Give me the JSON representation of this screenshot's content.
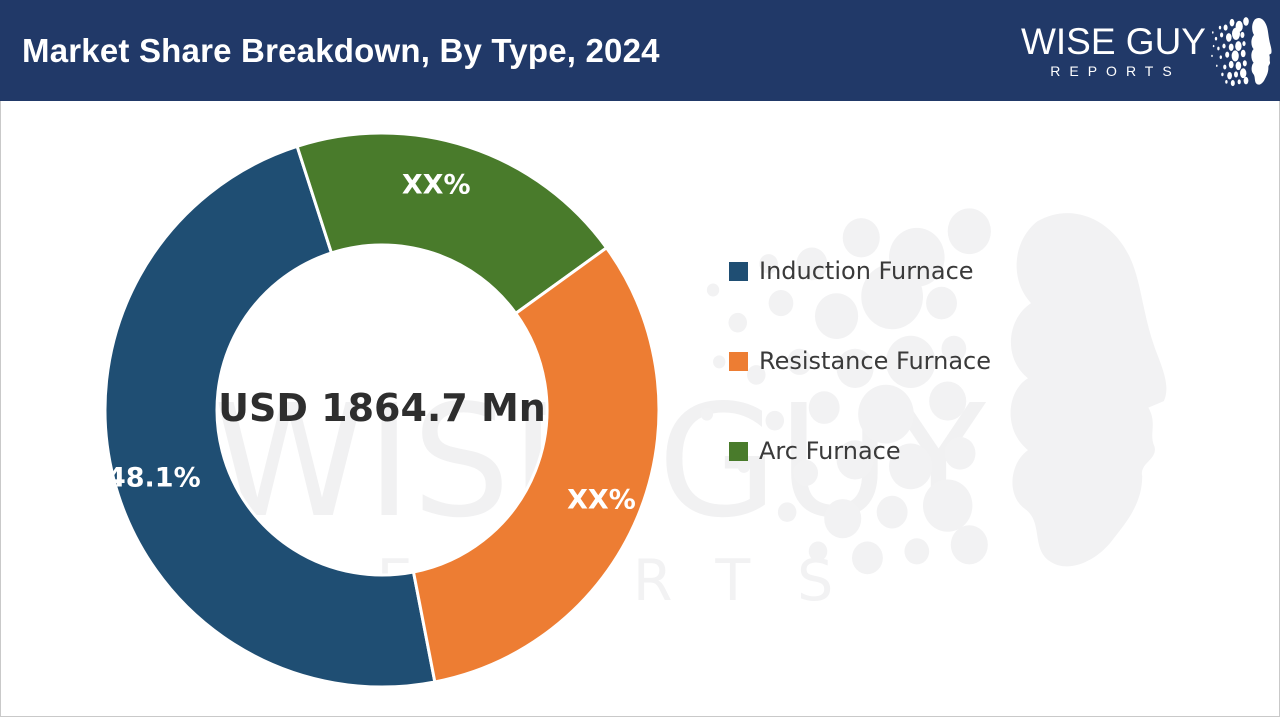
{
  "header": {
    "title": "Market Share Breakdown, By Type, 2024",
    "logo": {
      "brand": "WISE GUY",
      "sub": "REPORTS"
    }
  },
  "watermark": {
    "brand": "WISE GUY",
    "sub": "REPORTS"
  },
  "chart_data": {
    "type": "pie",
    "subtype": "donut",
    "title": "Market Share Breakdown, By Type, 2024",
    "center_label": "USD 1864.7 Mn",
    "unit": "%",
    "donut_hole_ratio": 0.6,
    "legend_position": "right-middle",
    "slices": [
      {
        "name": "Induction Furnace",
        "display_label": "48.1%",
        "value": 48.1,
        "color": "#1F4E73"
      },
      {
        "name": "Resistance Furnace",
        "display_label": "XX%",
        "value": 31.9,
        "color": "#ED7D33"
      },
      {
        "name": "Arc Furnace",
        "display_label": "XX%",
        "value": 20.0,
        "color": "#497B2B"
      }
    ]
  },
  "colors": {
    "header_bg": "#213968",
    "content_bg": "#FFFFFF",
    "frame_border": "#C9C9C9",
    "legend_text": "#3A3A3A",
    "center_text": "#2E2E2E",
    "watermark": "#F2F2F3",
    "slice_gap": "#FFFFFF"
  }
}
